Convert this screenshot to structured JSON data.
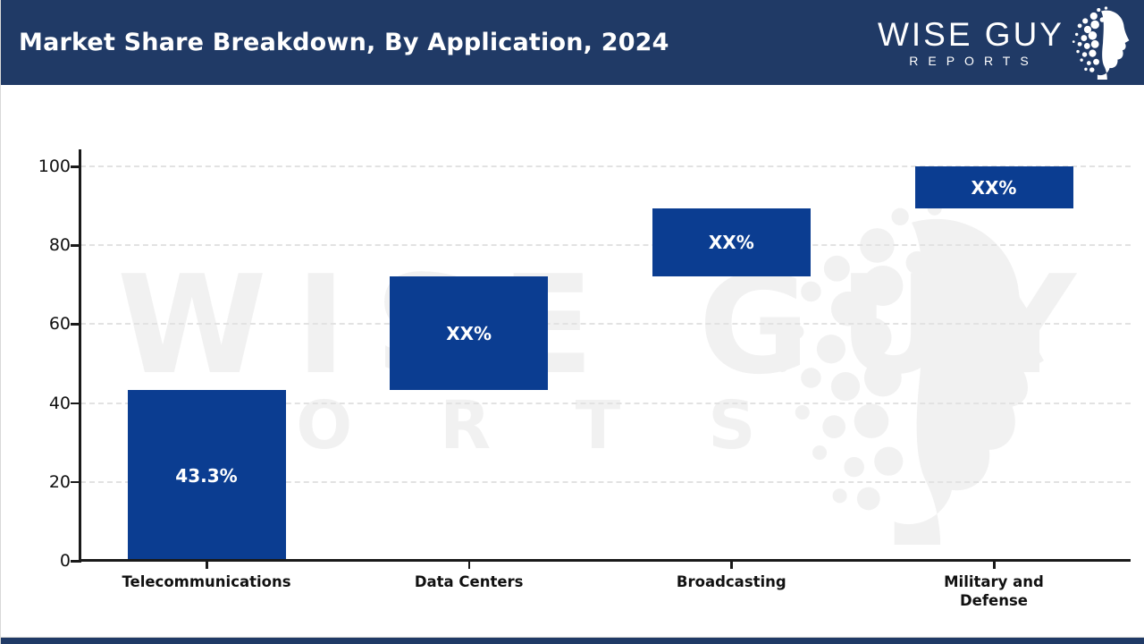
{
  "header": {
    "title": "Market Share Breakdown, By Application, 2024",
    "logo": {
      "line1": "WISE GUY",
      "line2": "REPORTS"
    }
  },
  "watermark": {
    "line1": "WISE GUY",
    "line2": "PORTS"
  },
  "colors": {
    "header_bg": "#203a66",
    "bar": "#0b3d91",
    "bar_label": "#ffffff",
    "watermark": "#f1f1f1",
    "grid": "#e2e2e2",
    "axis": "#1a1a1a"
  },
  "chart_data": {
    "type": "bar",
    "subtype": "waterfall",
    "title": "Market Share Breakdown, By Application, 2024",
    "categories": [
      "Telecommunications",
      "Data Centers",
      "Broadcasting",
      "Military and\nDefense"
    ],
    "segments": [
      {
        "category": "Telecommunications",
        "start": 0,
        "end": 43.3,
        "label": "43.3%"
      },
      {
        "category": "Data Centers",
        "start": 43.3,
        "end": 72.0,
        "label": "XX%"
      },
      {
        "category": "Broadcasting",
        "start": 72.0,
        "end": 89.3,
        "label": "XX%"
      },
      {
        "category": "Military and Defense",
        "start": 89.3,
        "end": 100.0,
        "label": "XX%"
      }
    ],
    "xlabel": "",
    "ylabel": "",
    "ylim": [
      0,
      100
    ],
    "yticks": [
      0,
      20,
      40,
      60,
      80,
      100
    ],
    "grid": "horizontal dashed",
    "legend": "none"
  }
}
